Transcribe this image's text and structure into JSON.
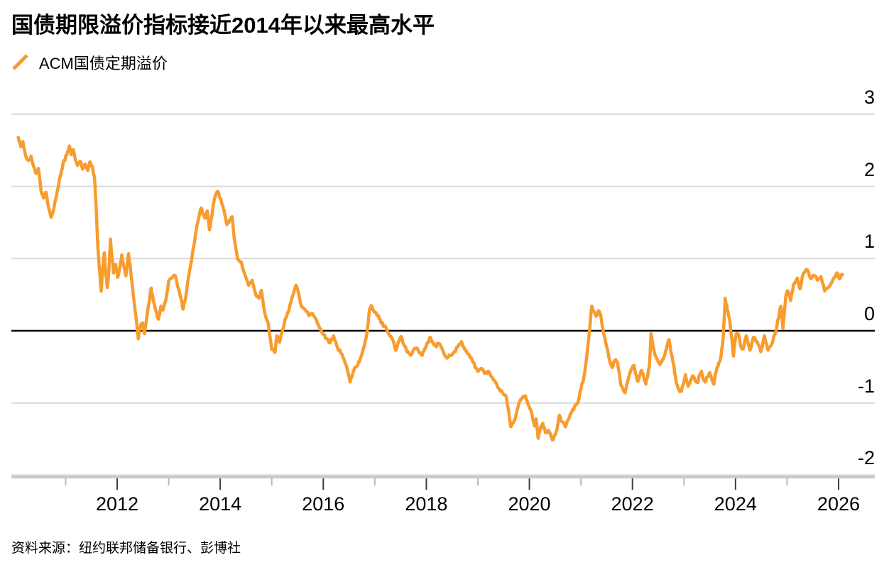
{
  "header": {
    "title": "国债期限溢价指标接近2014年以来最高水平"
  },
  "legend": {
    "label": "ACM国债定期溢价",
    "marker_color": "#F89C2E"
  },
  "footer": {
    "source": "资料来源：纽约联邦储备银行、彭博社"
  },
  "colors": {
    "line": "#F89C2E",
    "gridline": "#D9D9D9",
    "zero_line": "#000000",
    "axis_band": "#C9C9C9",
    "major_tick": "#3C3C3C",
    "minor_tick": "#B9B9B9",
    "text": "#000000"
  },
  "chart_data": {
    "type": "line",
    "title": "国债期限溢价指标接近2014年以来最高水平",
    "series_name": "ACM国债定期溢价",
    "legend_position": "top-left",
    "grid": "horizontal",
    "y_axis_side": "right",
    "ylim": [
      -2.35,
      3.2
    ],
    "x_range": [
      2010.0,
      2026.3
    ],
    "y_ticks": [
      3,
      2,
      1,
      0,
      -1,
      -2
    ],
    "zero_line": true,
    "x_major_ticks": [
      2012,
      2014,
      2016,
      2018,
      2020,
      2022,
      2024,
      2026
    ],
    "x_minor_ticks": [
      2011,
      2013,
      2015,
      2017,
      2019,
      2021,
      2023,
      2025
    ],
    "points": [
      [
        2010.08,
        2.68
      ],
      [
        2010.13,
        2.55
      ],
      [
        2010.17,
        2.62
      ],
      [
        2010.22,
        2.44
      ],
      [
        2010.28,
        2.36
      ],
      [
        2010.33,
        2.42
      ],
      [
        2010.38,
        2.27
      ],
      [
        2010.43,
        2.18
      ],
      [
        2010.47,
        2.25
      ],
      [
        2010.52,
        1.95
      ],
      [
        2010.57,
        1.84
      ],
      [
        2010.62,
        1.92
      ],
      [
        2010.67,
        1.7
      ],
      [
        2010.72,
        1.57
      ],
      [
        2010.77,
        1.68
      ],
      [
        2010.82,
        1.86
      ],
      [
        2010.87,
        2.05
      ],
      [
        2010.92,
        2.21
      ],
      [
        2010.97,
        2.36
      ],
      [
        2011.02,
        2.43
      ],
      [
        2011.07,
        2.56
      ],
      [
        2011.11,
        2.44
      ],
      [
        2011.15,
        2.51
      ],
      [
        2011.19,
        2.37
      ],
      [
        2011.23,
        2.29
      ],
      [
        2011.28,
        2.35
      ],
      [
        2011.33,
        2.24
      ],
      [
        2011.38,
        2.31
      ],
      [
        2011.43,
        2.22
      ],
      [
        2011.47,
        2.34
      ],
      [
        2011.52,
        2.27
      ],
      [
        2011.56,
        2.12
      ],
      [
        2011.59,
        1.75
      ],
      [
        2011.62,
        1.25
      ],
      [
        2011.65,
        0.9
      ],
      [
        2011.69,
        0.55
      ],
      [
        2011.72,
        0.88
      ],
      [
        2011.75,
        1.08
      ],
      [
        2011.78,
        0.78
      ],
      [
        2011.81,
        0.6
      ],
      [
        2011.84,
        0.85
      ],
      [
        2011.87,
        1.27
      ],
      [
        2011.9,
        1.02
      ],
      [
        2011.93,
        0.8
      ],
      [
        2011.97,
        0.92
      ],
      [
        2012.01,
        0.74
      ],
      [
        2012.05,
        0.86
      ],
      [
        2012.09,
        1.05
      ],
      [
        2012.13,
        0.89
      ],
      [
        2012.17,
        0.76
      ],
      [
        2012.22,
        1.07
      ],
      [
        2012.26,
        0.84
      ],
      [
        2012.3,
        0.58
      ],
      [
        2012.34,
        0.33
      ],
      [
        2012.38,
        0.1
      ],
      [
        2012.41,
        -0.11
      ],
      [
        2012.45,
        0.06
      ],
      [
        2012.49,
        0.11
      ],
      [
        2012.53,
        -0.04
      ],
      [
        2012.57,
        0.16
      ],
      [
        2012.61,
        0.36
      ],
      [
        2012.66,
        0.59
      ],
      [
        2012.7,
        0.42
      ],
      [
        2012.75,
        0.28
      ],
      [
        2012.8,
        0.16
      ],
      [
        2012.85,
        0.34
      ],
      [
        2012.89,
        0.29
      ],
      [
        2012.94,
        0.41
      ],
      [
        2013.0,
        0.69
      ],
      [
        2013.06,
        0.73
      ],
      [
        2013.13,
        0.76
      ],
      [
        2013.19,
        0.58
      ],
      [
        2013.24,
        0.44
      ],
      [
        2013.28,
        0.3
      ],
      [
        2013.33,
        0.46
      ],
      [
        2013.38,
        0.72
      ],
      [
        2013.44,
        0.96
      ],
      [
        2013.49,
        1.18
      ],
      [
        2013.54,
        1.42
      ],
      [
        2013.58,
        1.56
      ],
      [
        2013.63,
        1.7
      ],
      [
        2013.67,
        1.61
      ],
      [
        2013.71,
        1.56
      ],
      [
        2013.75,
        1.66
      ],
      [
        2013.79,
        1.4
      ],
      [
        2013.83,
        1.56
      ],
      [
        2013.87,
        1.76
      ],
      [
        2013.91,
        1.89
      ],
      [
        2013.95,
        1.93
      ],
      [
        2014.0,
        1.84
      ],
      [
        2014.05,
        1.73
      ],
      [
        2014.09,
        1.6
      ],
      [
        2014.13,
        1.47
      ],
      [
        2014.18,
        1.53
      ],
      [
        2014.23,
        1.58
      ],
      [
        2014.28,
        1.24
      ],
      [
        2014.34,
        0.99
      ],
      [
        2014.41,
        0.95
      ],
      [
        2014.48,
        0.78
      ],
      [
        2014.55,
        0.63
      ],
      [
        2014.62,
        0.7
      ],
      [
        2014.69,
        0.5
      ],
      [
        2014.75,
        0.45
      ],
      [
        2014.8,
        0.56
      ],
      [
        2014.86,
        0.26
      ],
      [
        2014.93,
        0.11
      ],
      [
        2015.0,
        -0.26
      ],
      [
        2015.06,
        -0.3
      ],
      [
        2015.1,
        -0.07
      ],
      [
        2015.15,
        -0.16
      ],
      [
        2015.19,
        -0.04
      ],
      [
        2015.26,
        0.16
      ],
      [
        2015.33,
        0.27
      ],
      [
        2015.4,
        0.48
      ],
      [
        2015.47,
        0.63
      ],
      [
        2015.52,
        0.52
      ],
      [
        2015.58,
        0.33
      ],
      [
        2015.65,
        0.29
      ],
      [
        2015.72,
        0.21
      ],
      [
        2015.79,
        0.24
      ],
      [
        2015.86,
        0.16
      ],
      [
        2015.93,
        0.04
      ],
      [
        2016.0,
        -0.05
      ],
      [
        2016.07,
        -0.11
      ],
      [
        2016.13,
        -0.17
      ],
      [
        2016.2,
        -0.07
      ],
      [
        2016.27,
        -0.22
      ],
      [
        2016.34,
        -0.31
      ],
      [
        2016.41,
        -0.41
      ],
      [
        2016.47,
        -0.55
      ],
      [
        2016.52,
        -0.71
      ],
      [
        2016.56,
        -0.63
      ],
      [
        2016.61,
        -0.51
      ],
      [
        2016.66,
        -0.48
      ],
      [
        2016.7,
        -0.43
      ],
      [
        2016.77,
        -0.27
      ],
      [
        2016.84,
        -0.07
      ],
      [
        2016.89,
        0.26
      ],
      [
        2016.93,
        0.35
      ],
      [
        2017.0,
        0.26
      ],
      [
        2017.07,
        0.21
      ],
      [
        2017.12,
        0.11
      ],
      [
        2017.19,
        0.07
      ],
      [
        2017.26,
        -0.03
      ],
      [
        2017.34,
        -0.11
      ],
      [
        2017.41,
        -0.27
      ],
      [
        2017.46,
        -0.15
      ],
      [
        2017.51,
        -0.08
      ],
      [
        2017.56,
        -0.19
      ],
      [
        2017.61,
        -0.26
      ],
      [
        2017.66,
        -0.31
      ],
      [
        2017.71,
        -0.33
      ],
      [
        2017.76,
        -0.26
      ],
      [
        2017.81,
        -0.24
      ],
      [
        2017.87,
        -0.31
      ],
      [
        2017.92,
        -0.34
      ],
      [
        2017.97,
        -0.25
      ],
      [
        2018.03,
        -0.16
      ],
      [
        2018.08,
        -0.09
      ],
      [
        2018.13,
        -0.16
      ],
      [
        2018.18,
        -0.21
      ],
      [
        2018.23,
        -0.18
      ],
      [
        2018.29,
        -0.23
      ],
      [
        2018.34,
        -0.31
      ],
      [
        2018.4,
        -0.38
      ],
      [
        2018.47,
        -0.34
      ],
      [
        2018.54,
        -0.29
      ],
      [
        2018.61,
        -0.22
      ],
      [
        2018.68,
        -0.15
      ],
      [
        2018.73,
        -0.23
      ],
      [
        2018.79,
        -0.31
      ],
      [
        2018.85,
        -0.37
      ],
      [
        2018.91,
        -0.44
      ],
      [
        2018.96,
        -0.51
      ],
      [
        2019.01,
        -0.56
      ],
      [
        2019.07,
        -0.52
      ],
      [
        2019.13,
        -0.59
      ],
      [
        2019.2,
        -0.56
      ],
      [
        2019.27,
        -0.64
      ],
      [
        2019.34,
        -0.71
      ],
      [
        2019.41,
        -0.8
      ],
      [
        2019.48,
        -0.86
      ],
      [
        2019.55,
        -0.91
      ],
      [
        2019.6,
        -1.12
      ],
      [
        2019.64,
        -1.33
      ],
      [
        2019.67,
        -1.27
      ],
      [
        2019.71,
        -1.24
      ],
      [
        2019.76,
        -1.1
      ],
      [
        2019.81,
        -0.98
      ],
      [
        2019.86,
        -0.93
      ],
      [
        2019.92,
        -0.9
      ],
      [
        2019.97,
        -1.01
      ],
      [
        2020.02,
        -1.09
      ],
      [
        2020.06,
        -1.2
      ],
      [
        2020.1,
        -1.32
      ],
      [
        2020.13,
        -1.22
      ],
      [
        2020.17,
        -1.49
      ],
      [
        2020.21,
        -1.36
      ],
      [
        2020.26,
        -1.28
      ],
      [
        2020.31,
        -1.41
      ],
      [
        2020.37,
        -1.38
      ],
      [
        2020.42,
        -1.46
      ],
      [
        2020.46,
        -1.51
      ],
      [
        2020.51,
        -1.43
      ],
      [
        2020.55,
        -1.3
      ],
      [
        2020.58,
        -1.17
      ],
      [
        2020.63,
        -1.26
      ],
      [
        2020.7,
        -1.33
      ],
      [
        2020.77,
        -1.21
      ],
      [
        2020.84,
        -1.09
      ],
      [
        2020.9,
        -1.03
      ],
      [
        2020.95,
        -0.97
      ],
      [
        2021.0,
        -0.81
      ],
      [
        2021.06,
        -0.63
      ],
      [
        2021.12,
        -0.32
      ],
      [
        2021.17,
        0.03
      ],
      [
        2021.21,
        0.34
      ],
      [
        2021.25,
        0.27
      ],
      [
        2021.3,
        0.2
      ],
      [
        2021.34,
        0.28
      ],
      [
        2021.38,
        0.23
      ],
      [
        2021.43,
        0.01
      ],
      [
        2021.48,
        -0.16
      ],
      [
        2021.53,
        -0.31
      ],
      [
        2021.57,
        -0.45
      ],
      [
        2021.61,
        -0.51
      ],
      [
        2021.66,
        -0.41
      ],
      [
        2021.71,
        -0.44
      ],
      [
        2021.75,
        -0.61
      ],
      [
        2021.78,
        -0.76
      ],
      [
        2021.82,
        -0.82
      ],
      [
        2021.86,
        -0.86
      ],
      [
        2021.89,
        -0.74
      ],
      [
        2021.93,
        -0.64
      ],
      [
        2021.97,
        -0.55
      ],
      [
        2022.03,
        -0.48
      ],
      [
        2022.07,
        -0.61
      ],
      [
        2022.1,
        -0.7
      ],
      [
        2022.14,
        -0.62
      ],
      [
        2022.18,
        -0.55
      ],
      [
        2022.22,
        -0.65
      ],
      [
        2022.26,
        -0.74
      ],
      [
        2022.3,
        -0.6
      ],
      [
        2022.33,
        -0.47
      ],
      [
        2022.36,
        -0.04
      ],
      [
        2022.4,
        -0.21
      ],
      [
        2022.44,
        -0.34
      ],
      [
        2022.49,
        -0.41
      ],
      [
        2022.53,
        -0.47
      ],
      [
        2022.58,
        -0.4
      ],
      [
        2022.63,
        -0.33
      ],
      [
        2022.67,
        -0.21
      ],
      [
        2022.71,
        -0.12
      ],
      [
        2022.75,
        -0.31
      ],
      [
        2022.79,
        -0.44
      ],
      [
        2022.82,
        -0.59
      ],
      [
        2022.86,
        -0.74
      ],
      [
        2022.9,
        -0.81
      ],
      [
        2022.95,
        -0.84
      ],
      [
        2023.0,
        -0.7
      ],
      [
        2023.03,
        -0.61
      ],
      [
        2023.08,
        -0.77
      ],
      [
        2023.13,
        -0.68
      ],
      [
        2023.18,
        -0.63
      ],
      [
        2023.22,
        -0.69
      ],
      [
        2023.26,
        -0.72
      ],
      [
        2023.3,
        -0.62
      ],
      [
        2023.34,
        -0.56
      ],
      [
        2023.37,
        -0.66
      ],
      [
        2023.41,
        -0.71
      ],
      [
        2023.45,
        -0.64
      ],
      [
        2023.5,
        -0.58
      ],
      [
        2023.54,
        -0.67
      ],
      [
        2023.58,
        -0.74
      ],
      [
        2023.61,
        -0.6
      ],
      [
        2023.65,
        -0.5
      ],
      [
        2023.68,
        -0.44
      ],
      [
        2023.72,
        -0.35
      ],
      [
        2023.76,
        -0.1
      ],
      [
        2023.8,
        0.45
      ],
      [
        2023.84,
        0.29
      ],
      [
        2023.88,
        0.18
      ],
      [
        2023.92,
        -0.06
      ],
      [
        2023.96,
        -0.35
      ],
      [
        2024.01,
        -0.05
      ],
      [
        2024.06,
        -0.05
      ],
      [
        2024.1,
        -0.21
      ],
      [
        2024.15,
        -0.25
      ],
      [
        2024.21,
        -0.07
      ],
      [
        2024.28,
        -0.27
      ],
      [
        2024.35,
        -0.09
      ],
      [
        2024.42,
        -0.15
      ],
      [
        2024.49,
        -0.29
      ],
      [
        2024.56,
        -0.07
      ],
      [
        2024.63,
        -0.27
      ],
      [
        2024.7,
        -0.19
      ],
      [
        2024.77,
        -0.04
      ],
      [
        2024.84,
        0.19
      ],
      [
        2024.88,
        0.34
      ],
      [
        2024.92,
        0.03
      ],
      [
        2024.98,
        0.5
      ],
      [
        2025.02,
        0.55
      ],
      [
        2025.07,
        0.42
      ],
      [
        2025.13,
        0.65
      ],
      [
        2025.2,
        0.73
      ],
      [
        2025.25,
        0.58
      ],
      [
        2025.32,
        0.8
      ],
      [
        2025.39,
        0.85
      ],
      [
        2025.46,
        0.72
      ],
      [
        2025.52,
        0.77
      ],
      [
        2025.59,
        0.7
      ],
      [
        2025.66,
        0.75
      ],
      [
        2025.73,
        0.55
      ],
      [
        2025.8,
        0.6
      ],
      [
        2025.87,
        0.67
      ],
      [
        2025.93,
        0.75
      ],
      [
        2025.97,
        0.8
      ],
      [
        2026.02,
        0.72
      ],
      [
        2026.08,
        0.78
      ]
    ]
  }
}
